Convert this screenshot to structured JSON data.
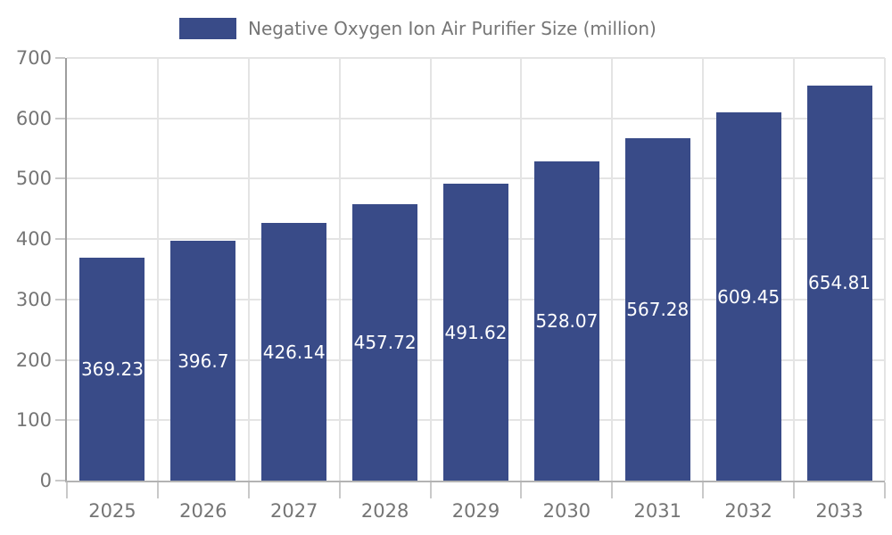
{
  "legend": {
    "series_label": "Negative Oxygen Ion Air Purifier Size (million)"
  },
  "chart_data": {
    "type": "bar",
    "title": "Negative Oxygen Ion Air Purifier Size (million)",
    "categories": [
      "2025",
      "2026",
      "2027",
      "2028",
      "2029",
      "2030",
      "2031",
      "2032",
      "2033"
    ],
    "values": [
      369.23,
      396.7,
      426.14,
      457.72,
      491.62,
      528.07,
      567.28,
      609.45,
      654.81
    ],
    "value_labels": [
      "369.23",
      "396.7",
      "426.14",
      "457.72",
      "491.62",
      "528.07",
      "567.28",
      "609.45",
      "654.81"
    ],
    "xlabel": "",
    "ylabel": "",
    "ylim": [
      0,
      700
    ],
    "ytick_interval": 100,
    "ytick_labels": [
      "0",
      "100",
      "200",
      "300",
      "400",
      "500",
      "600",
      "700"
    ],
    "grid": true,
    "legend_position": "top",
    "bar_label_position": "center-inside"
  },
  "colors": {
    "background": "#FFFFFF",
    "bar": "#394B88",
    "grid_line": "#E4E4E4",
    "y_axis_line": "#9E9E9E",
    "x_axis_line": "#B3B3B3",
    "tick": "#C9C9C9",
    "tick_label_text": "#757575",
    "legend_text": "#757575",
    "bar_label_text": "#FFFFFF"
  }
}
